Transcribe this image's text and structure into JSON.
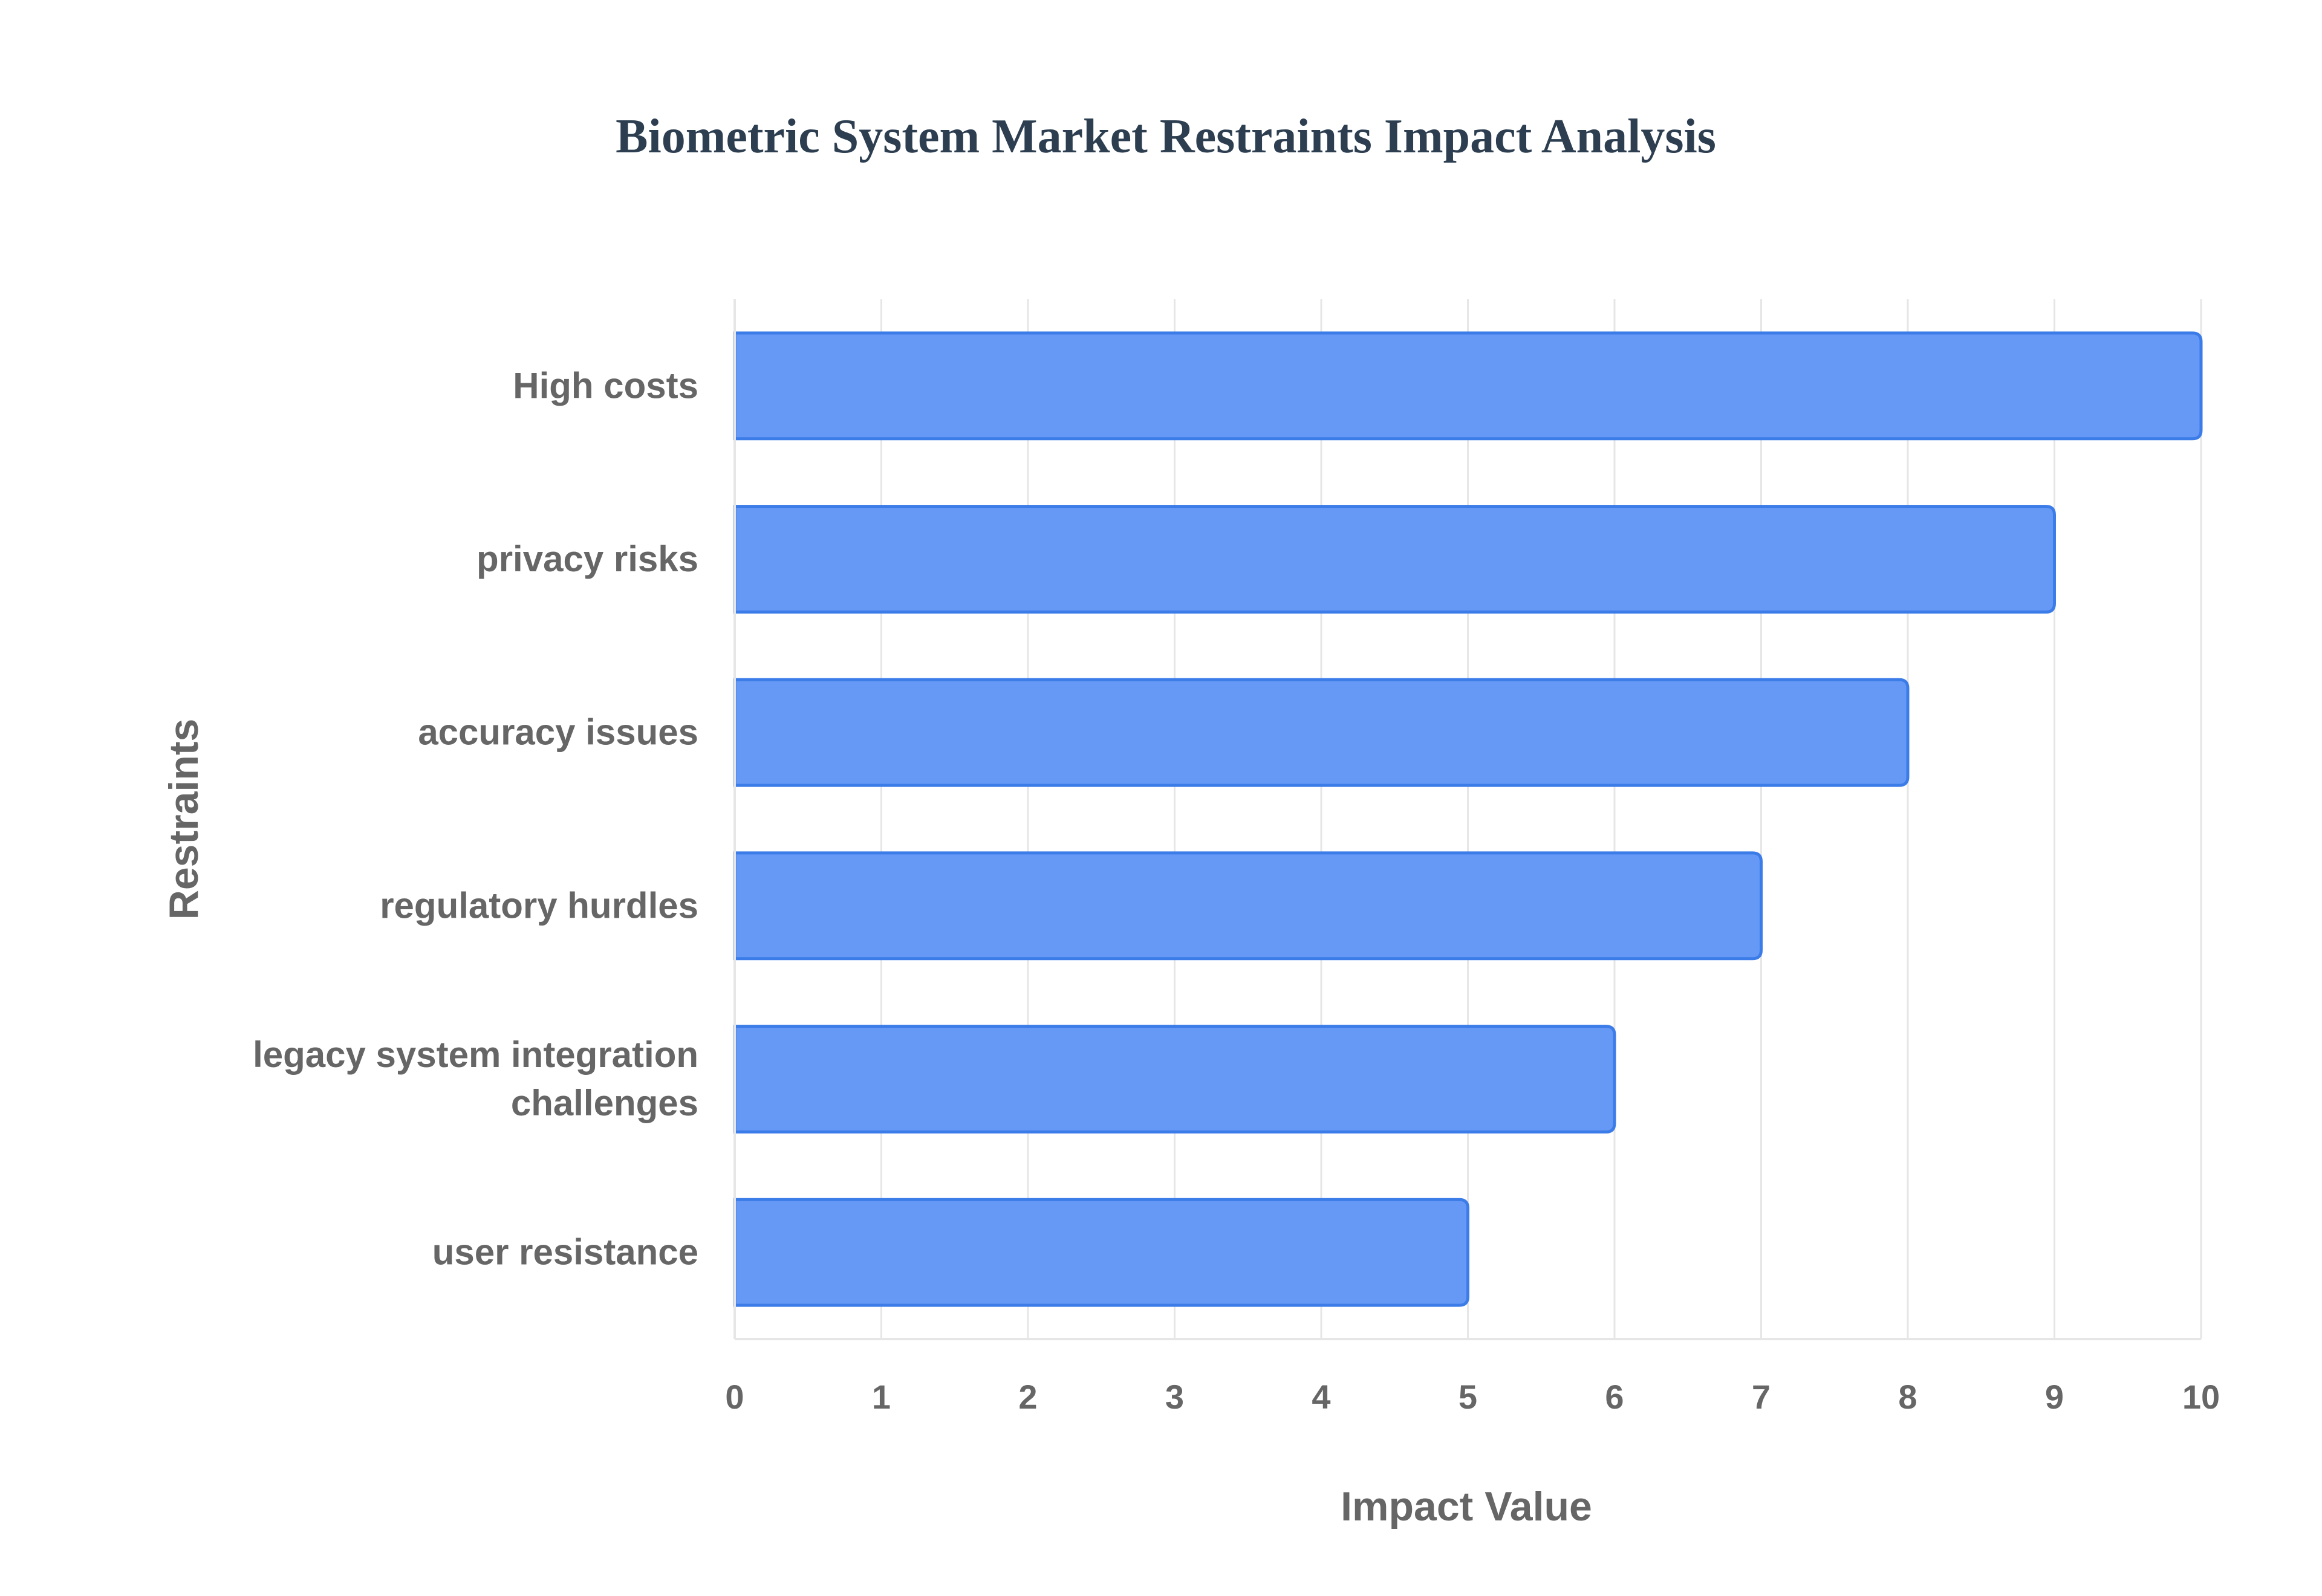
{
  "chart_data": {
    "type": "bar",
    "orientation": "horizontal",
    "title": "Biometric System Market Restraints Impact Analysis",
    "xlabel": "Impact Value",
    "ylabel": "Restraints",
    "categories": [
      "High costs",
      "privacy risks",
      "accuracy issues",
      "regulatory hurdles",
      "legacy system integration challenges",
      "user resistance"
    ],
    "category_label_lines": [
      [
        "High costs"
      ],
      [
        "privacy risks"
      ],
      [
        "accuracy issues"
      ],
      [
        "regulatory hurdles"
      ],
      [
        "legacy system integration",
        "challenges"
      ],
      [
        "user resistance"
      ]
    ],
    "values": [
      10,
      9,
      8,
      7,
      6,
      5
    ],
    "xlim": [
      0,
      10
    ],
    "xticks": [
      0,
      1,
      2,
      3,
      4,
      5,
      6,
      7,
      8,
      9,
      10
    ],
    "grid": true,
    "colors": {
      "bar_fill": "#6699f5",
      "bar_stroke": "#3b7ce8",
      "grid": "#e6e6e6",
      "axis_text": "#666666",
      "title": "#2c3e50"
    }
  }
}
